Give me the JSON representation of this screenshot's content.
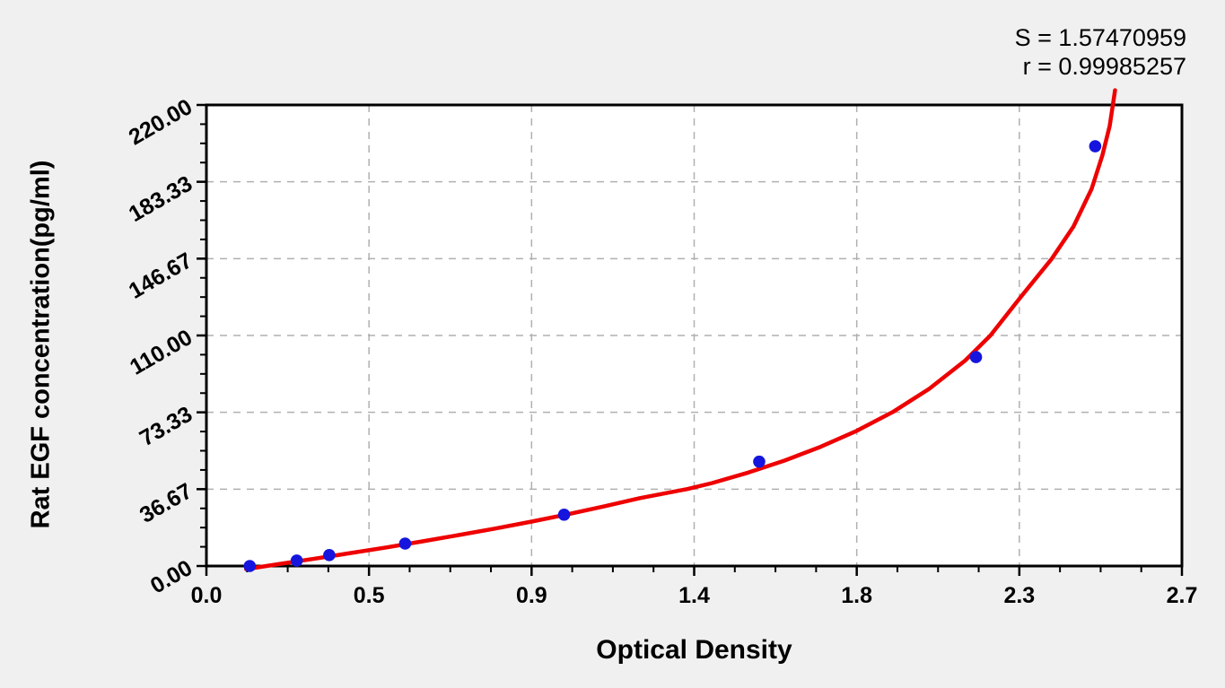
{
  "figure": {
    "page_background": "#f0f0f0"
  },
  "chart_data": {
    "type": "scatter",
    "title": "",
    "xlabel": "Optical Density",
    "ylabel": "Rat EGF concentration(pg/ml)",
    "annotations": [
      "S = 1.57470959",
      "r = 0.99985257"
    ],
    "fit": {
      "S": 1.57470959,
      "r": 0.99985257
    },
    "x_axis": {
      "min": 0,
      "max": 2.7,
      "major_tick_values": [
        0,
        0.45,
        0.9,
        1.35,
        1.8,
        2.25,
        2.7
      ],
      "major_tick_labels": [
        "0.0",
        "0.5",
        "0.9",
        "1.4",
        "1.8",
        "2.3",
        "2.7"
      ],
      "minor_divisions": 4
    },
    "y_axis": {
      "min": 0,
      "max": 220,
      "major_tick_values": [
        0,
        36.667,
        73.333,
        110,
        146.667,
        183.333,
        220
      ],
      "major_tick_labels": [
        "0.00",
        "36.67",
        "73.33",
        "110.00",
        "146.67",
        "183.33",
        "220.00"
      ],
      "minor_divisions": 4
    },
    "grid": {
      "style": "dashed",
      "on_major_ticks": true,
      "exclude_edges": true
    },
    "points": [
      {
        "x": 0.12,
        "y": 0.0
      },
      {
        "x": 0.25,
        "y": 2.6
      },
      {
        "x": 0.34,
        "y": 5.2
      },
      {
        "x": 0.55,
        "y": 10.7
      },
      {
        "x": 0.99,
        "y": 24.5
      },
      {
        "x": 1.53,
        "y": 49.8
      },
      {
        "x": 2.13,
        "y": 99.7
      },
      {
        "x": 2.46,
        "y": 200.3
      }
    ],
    "curve_samples": [
      [
        0.11,
        -1.5
      ],
      [
        0.2,
        0.9
      ],
      [
        0.3,
        3.5
      ],
      [
        0.4,
        6.2
      ],
      [
        0.5,
        8.9
      ],
      [
        0.6,
        11.8
      ],
      [
        0.7,
        14.8
      ],
      [
        0.8,
        17.9
      ],
      [
        0.9,
        21.2
      ],
      [
        1.0,
        24.7
      ],
      [
        1.1,
        28.4
      ],
      [
        1.2,
        32.4
      ],
      [
        1.33,
        36.7
      ],
      [
        1.4,
        39.6
      ],
      [
        1.5,
        44.6
      ],
      [
        1.6,
        50.3
      ],
      [
        1.7,
        56.9
      ],
      [
        1.8,
        64.5
      ],
      [
        1.9,
        73.5
      ],
      [
        2.0,
        84.5
      ],
      [
        2.1,
        98.0
      ],
      [
        2.17,
        110.0
      ],
      [
        2.25,
        127.5
      ],
      [
        2.34,
        146.7
      ],
      [
        2.4,
        162.0
      ],
      [
        2.45,
        180.0
      ],
      [
        2.48,
        196.0
      ],
      [
        2.5,
        210.0
      ],
      [
        2.515,
        227.0
      ]
    ],
    "colors": {
      "point": "#1515dd",
      "curve": "#ee0000",
      "grid": "#b0b0b0",
      "axis": "#000000",
      "plot_bg": "#ffffff",
      "page_bg": "#f0f0f0"
    }
  }
}
